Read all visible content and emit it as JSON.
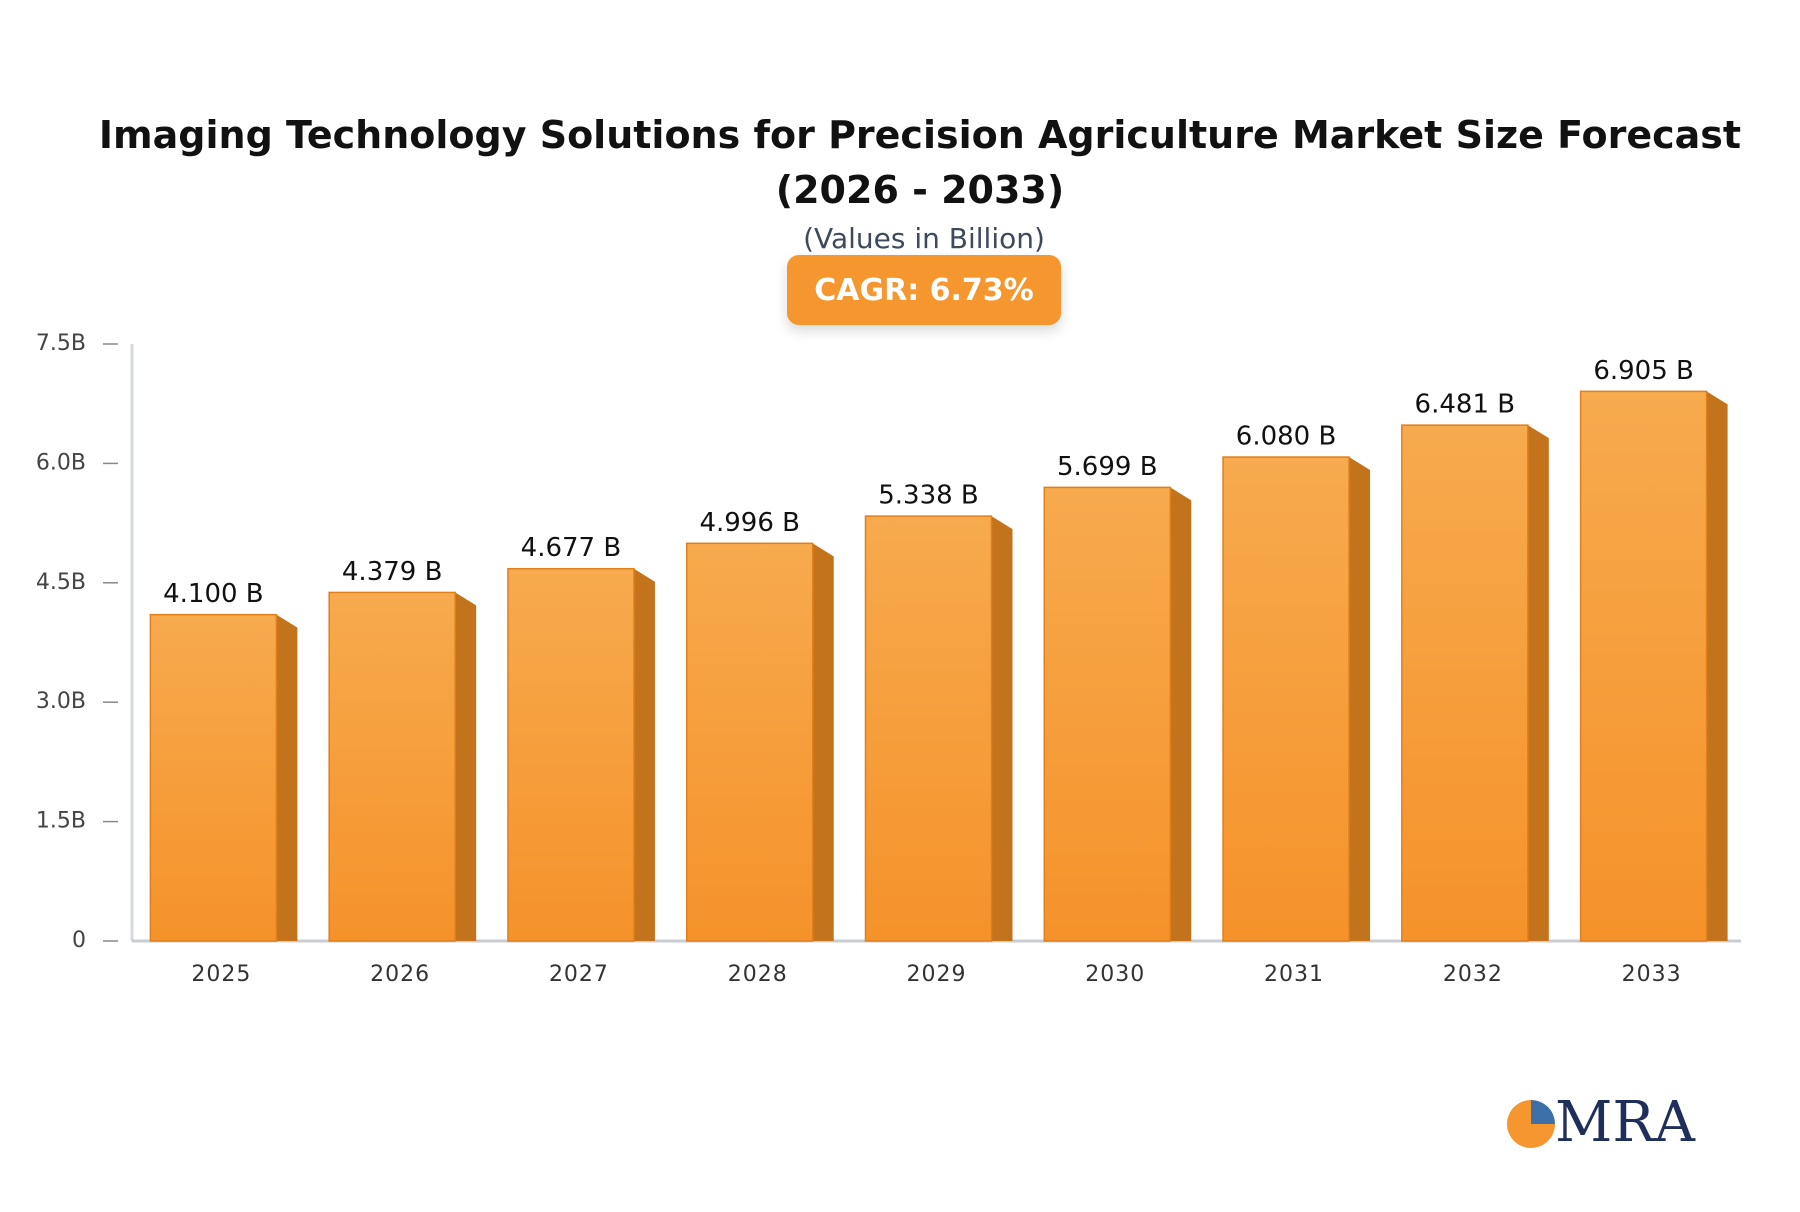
{
  "chart_data": {
    "type": "bar",
    "title": "Imaging Technology Solutions for Precision Agriculture Market Size Forecast (2026 - 2033)",
    "subtitle": "(Values in Billion)",
    "badge": "CAGR: 6.73%",
    "categories": [
      "2025",
      "2026",
      "2027",
      "2028",
      "2029",
      "2030",
      "2031",
      "2032",
      "2033"
    ],
    "values": [
      4.1,
      4.379,
      4.677,
      4.996,
      5.338,
      5.699,
      6.08,
      6.481,
      6.905
    ],
    "value_labels": [
      "4.100 B",
      "4.379 B",
      "4.677 B",
      "4.996 B",
      "5.338 B",
      "5.699 B",
      "6.080 B",
      "6.481 B",
      "6.905 B"
    ],
    "color": "#f5962f",
    "ylim": [
      0,
      7.5
    ],
    "yticks": [
      0,
      {
        "value": 1.5,
        "label": "1.5B"
      },
      {
        "value": 3,
        "label": "3.0B"
      },
      {
        "value": 4.5,
        "label": "4.5B"
      },
      {
        "value": 6,
        "label": "6.0B"
      },
      {
        "value": 7.5,
        "label": "7.5B"
      }
    ],
    "logo": "MRA"
  }
}
